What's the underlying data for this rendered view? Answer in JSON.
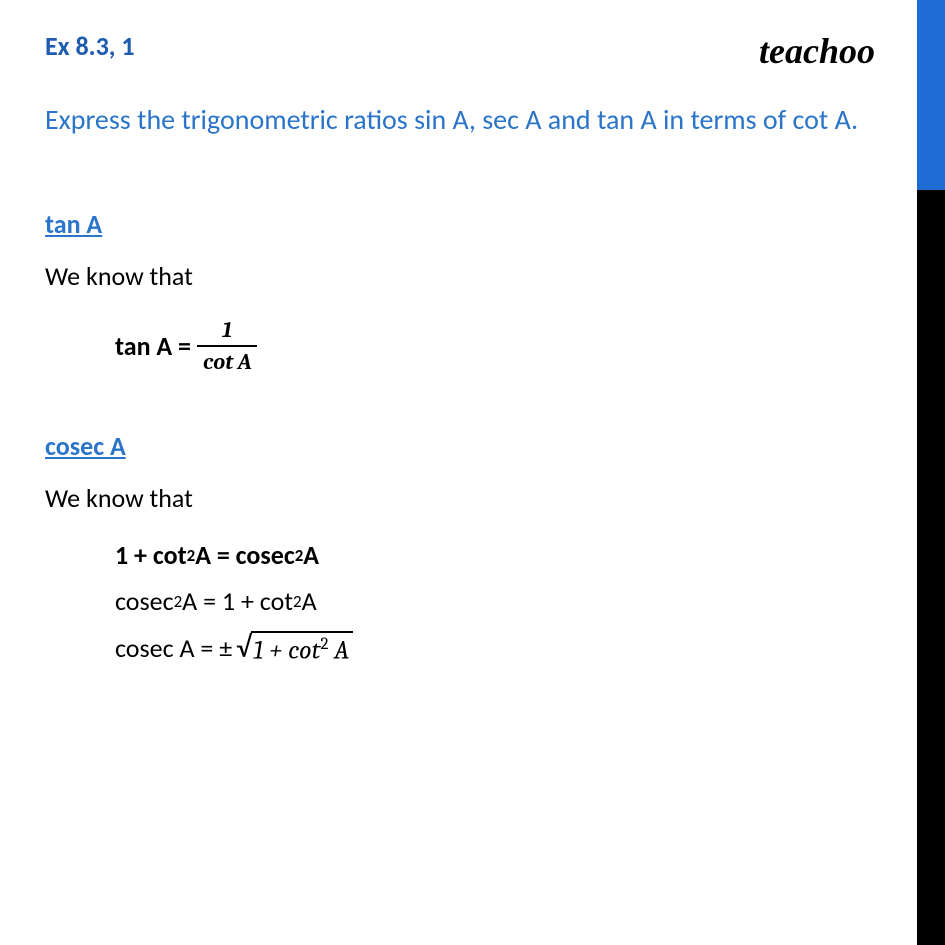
{
  "header": {
    "ex_label": "Ex 8.3, 1",
    "brand": "teachoo"
  },
  "question": "Express the trigonometric ratios sin A, sec A and tan A in terms of cot A.",
  "section1": {
    "title": "tan A",
    "intro": "We know that",
    "eq_lhs": "tan A = ",
    "frac_num": "1",
    "frac_den": "cot A"
  },
  "section2": {
    "title": "cosec A",
    "intro": "We know that",
    "line1_a": "1 + cot",
    "line1_b": " A = cosec",
    "line1_c": " A",
    "line2_a": "cosec",
    "line2_b": " A = 1 + cot",
    "line2_c": " A",
    "line3_a": "cosec A = ± ",
    "sqrt_a": "1 + cot",
    "sqrt_b": " A",
    "sup2": "2"
  },
  "colors": {
    "heading_blue": "#1f5cb0",
    "link_blue": "#2a74c9",
    "text_black": "#000000",
    "sidebar_blue": "#1e6bd6",
    "sidebar_black": "#000000",
    "background": "#ffffff"
  },
  "fonts": {
    "body_size": 26,
    "brand_size": 36,
    "frac_size": 22
  }
}
